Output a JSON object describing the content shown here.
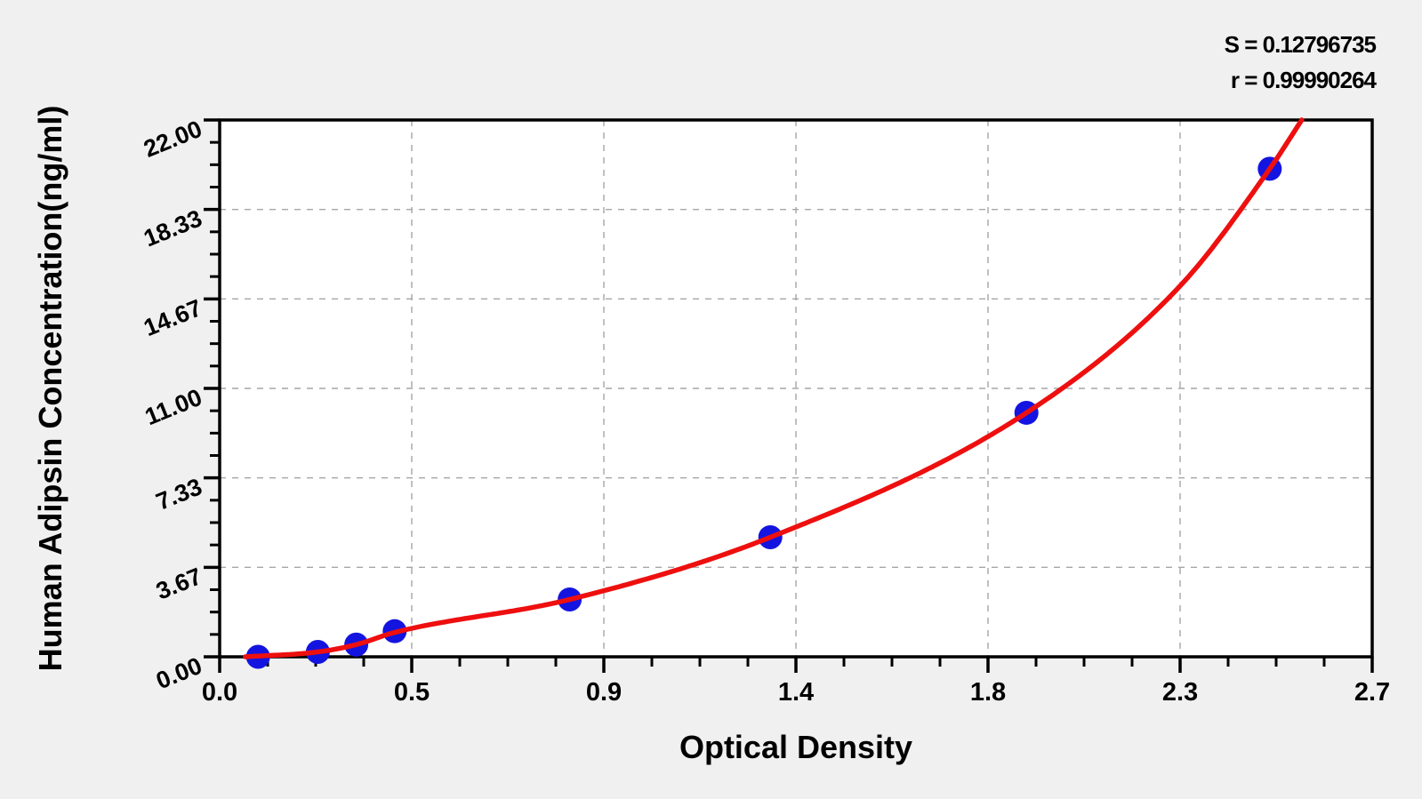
{
  "stats": {
    "s_label": "S = 0.12796735",
    "r_label": "r = 0.99990264"
  },
  "chart_data": {
    "type": "scatter",
    "title": "",
    "xlabel": "Optical Density",
    "ylabel": "Human Adipsin Concentration(ng/ml)",
    "xlim": [
      0,
      2.7
    ],
    "ylim": [
      0,
      22
    ],
    "x_major_ticks": [
      0,
      0.45,
      0.9,
      1.35,
      1.8,
      2.25,
      2.7
    ],
    "x_tick_labels": [
      "0.0",
      "0.5",
      "0.9",
      "1.4",
      "1.8",
      "2.3",
      "2.7"
    ],
    "y_major_ticks": [
      0,
      3.667,
      7.333,
      11,
      14.667,
      18.333,
      22
    ],
    "y_tick_labels": [
      "0.00",
      "3.67",
      "7.33",
      "11.00",
      "14.67",
      "18.33",
      "22.00"
    ],
    "minor_ticks_between_majors": 3,
    "grid": "dashed gray lines at interior major ticks, both axes",
    "legend": "none",
    "series": [
      {
        "name": "standard-points",
        "type": "scatter",
        "color": "#1414e0",
        "points": [
          {
            "x": 0.09,
            "y": 0.0
          },
          {
            "x": 0.23,
            "y": 0.2
          },
          {
            "x": 0.32,
            "y": 0.5
          },
          {
            "x": 0.41,
            "y": 1.05
          },
          {
            "x": 0.82,
            "y": 2.35
          },
          {
            "x": 1.29,
            "y": 4.9
          },
          {
            "x": 1.89,
            "y": 10.0
          },
          {
            "x": 2.46,
            "y": 20.0
          }
        ]
      },
      {
        "name": "fitted-curve",
        "type": "line",
        "color": "#ee0f0f",
        "points": [
          {
            "x": 0.06,
            "y": 0.0
          },
          {
            "x": 0.23,
            "y": 0.2
          },
          {
            "x": 0.32,
            "y": 0.5
          },
          {
            "x": 0.41,
            "y": 1.0
          },
          {
            "x": 0.82,
            "y": 2.35
          },
          {
            "x": 1.29,
            "y": 4.9
          },
          {
            "x": 1.89,
            "y": 10.0
          },
          {
            "x": 2.25,
            "y": 15.2
          },
          {
            "x": 2.46,
            "y": 20.0
          },
          {
            "x": 2.535,
            "y": 22.0
          }
        ]
      }
    ]
  },
  "style": {
    "page_bg": "#f0f0f0",
    "plot_bg": "#ffffff",
    "axis_color": "#000000",
    "grid_color": "#a6a6a6",
    "point_color": "#1414e0",
    "curve_color": "#ee0f0f",
    "point_radius": 13.5,
    "curve_width": 5.5
  }
}
